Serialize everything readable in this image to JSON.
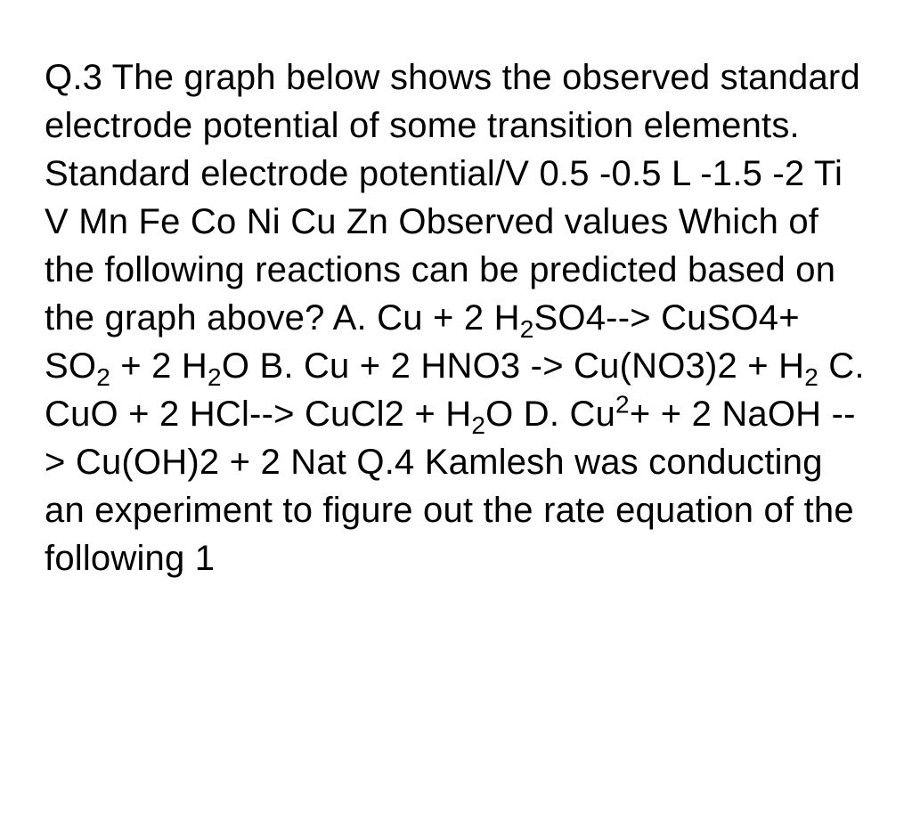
{
  "text_color": "#000000",
  "background_color": "#ffffff",
  "font_size_pt": 30,
  "q3": {
    "prefix": "Q.3 The graph below shows the observed standard electrode potential of some transition elements. Standard electrode potential/V 0.5 -0.5 L -1.5 -2 Ti V Mn Fe Co Ni Cu Zn Observed values Which of the following reactions can be predicted based on the graph above? A. Cu + 2 H",
    "seg1": "SO4--> CuSO4+ SO",
    "seg2": " + 2 H",
    "seg3": "O B. Cu + 2 HNO3 -> Cu(NO3)2 + H",
    "seg4": " C. CuO + 2 HCl--> CuCl2 + H",
    "seg5": "O D. Cu",
    "seg6": "+ + 2 NaOH --> Cu(OH)2 + 2 Nat Q.4 Kamlesh was conducting an experiment to figure out the rate equation of the following 1",
    "sub2a": "2",
    "sub2b": "2",
    "sub2c": "2",
    "sub2d": "2",
    "sub2e": "2",
    "sup2": "2"
  }
}
